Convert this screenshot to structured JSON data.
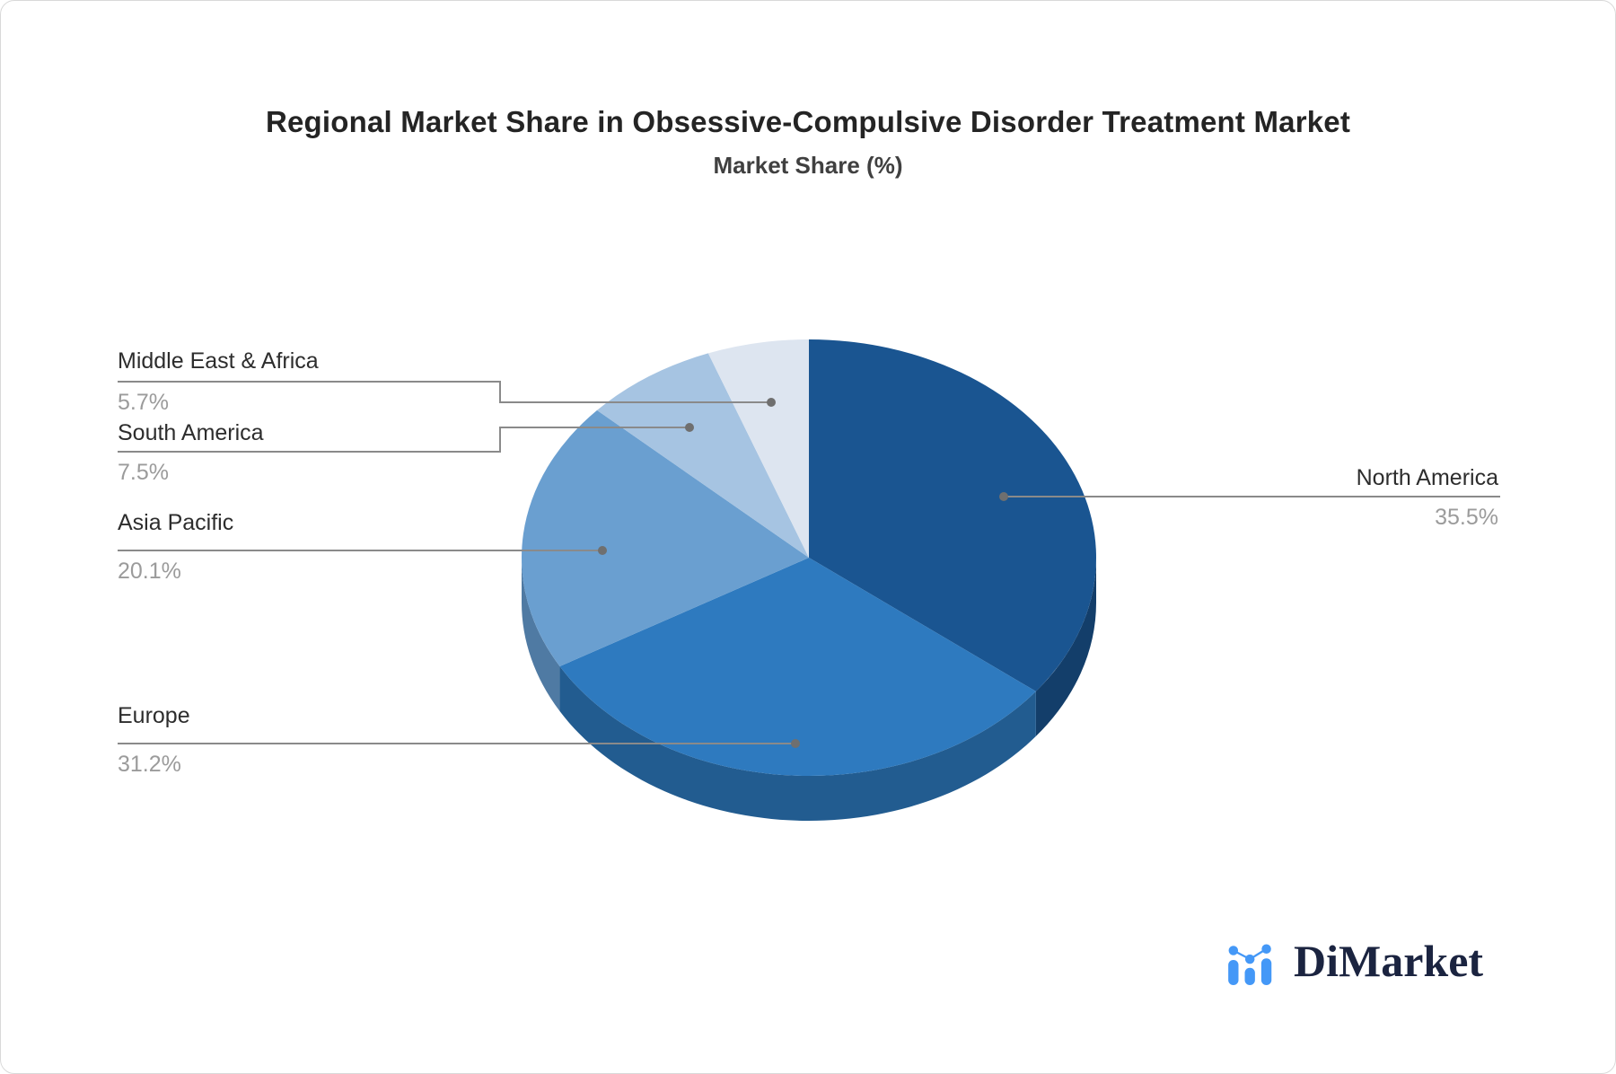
{
  "title": "Regional Market Share in Obsessive-Compulsive Disorder Treatment Market",
  "subtitle": "Market Share (%)",
  "chart_data": {
    "type": "pie",
    "style": "3d",
    "title": "Regional Market Share in Obsessive-Compulsive Disorder Treatment Market",
    "subtitle": "Market Share (%)",
    "unit": "%",
    "start_angle": "12-oclock",
    "direction": "clockwise",
    "legend_position": "none",
    "segments": [
      {
        "label": "North America",
        "value": 35.5,
        "display": "35.5%",
        "color": "#1A5591",
        "side_color": "#133E6A"
      },
      {
        "label": "Europe",
        "value": 31.2,
        "display": "31.2%",
        "color": "#2E7ABF",
        "side_color": "#225C90"
      },
      {
        "label": "Asia Pacific",
        "value": 20.1,
        "display": "20.1%",
        "color": "#6A9FD0",
        "side_color": "#4F7AA3"
      },
      {
        "label": "South America",
        "value": 7.5,
        "display": "7.5%",
        "color": "#A6C4E2",
        "side_color": "#7E96AE"
      },
      {
        "label": "Middle East & Africa",
        "value": 5.7,
        "display": "5.7%",
        "color": "#DDE5F0",
        "side_color": "#A9B8C9"
      }
    ],
    "leader_line_color": "#8a8a8a",
    "leader_dot_color": "#6f6f6f"
  },
  "branding": {
    "logo_text": "DiMarket",
    "logo_icon": "bar-chart-icon"
  }
}
